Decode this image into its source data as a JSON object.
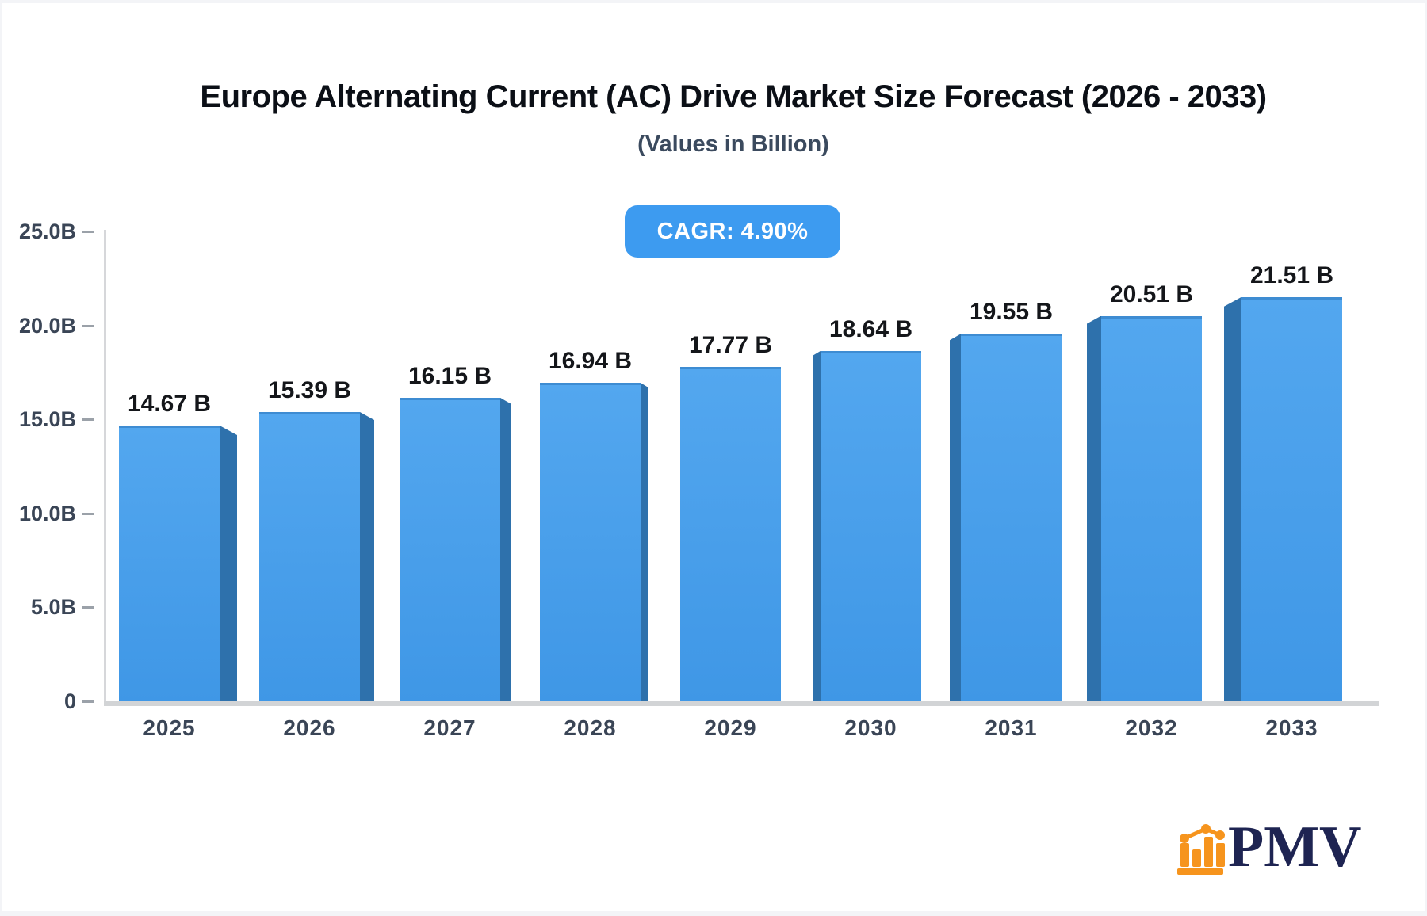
{
  "header": {
    "title": "Europe Alternating Current (AC) Drive Market Size Forecast (2026 - 2033)",
    "subtitle": "(Values in Billion)"
  },
  "badge": {
    "label": "CAGR: 4.90%",
    "color": "#3D9BF0"
  },
  "chart_data": {
    "type": "bar",
    "title": "Europe Alternating Current (AC) Drive Market Size Forecast (2026 - 2033)",
    "subtitle": "(Values in Billion)",
    "xlabel": "",
    "ylabel": "",
    "ylim": [
      0,
      25
    ],
    "grid": false,
    "legend": "none",
    "categories": [
      "2025",
      "2026",
      "2027",
      "2028",
      "2029",
      "2030",
      "2031",
      "2032",
      "2033"
    ],
    "values": [
      14.67,
      15.39,
      16.15,
      16.94,
      17.77,
      18.64,
      19.55,
      20.51,
      21.51
    ],
    "value_labels": [
      "14.67 B",
      "15.39 B",
      "16.15 B",
      "16.94 B",
      "17.77 B",
      "18.64 B",
      "19.55 B",
      "20.51 B",
      "21.51 B"
    ],
    "y_ticks": [
      {
        "label": "25.0B",
        "value": 25
      },
      {
        "label": "20.0B",
        "value": 20
      },
      {
        "label": "15.0B",
        "value": 15
      },
      {
        "label": "10.0B",
        "value": 10
      },
      {
        "label": "5.0B",
        "value": 5
      },
      {
        "label": "0",
        "value": 0
      }
    ],
    "colors": {
      "bar_face_top": "#53A7EF",
      "bar_face_bottom": "#3F97E6",
      "bar_top_edge": "#3E8CD2",
      "bar_side": "#2E71AC",
      "axis_line": "#D6D7DA",
      "baseline": "#D2D4D6",
      "tick_dash": "#9BA1A9",
      "tick_label": "#3A4556",
      "value_label": "#14161A"
    }
  },
  "logo": {
    "text": "PMV",
    "icon": "bar-chart-logo-icon",
    "icon_color": "#F6941D",
    "text_color": "#1E2452"
  }
}
